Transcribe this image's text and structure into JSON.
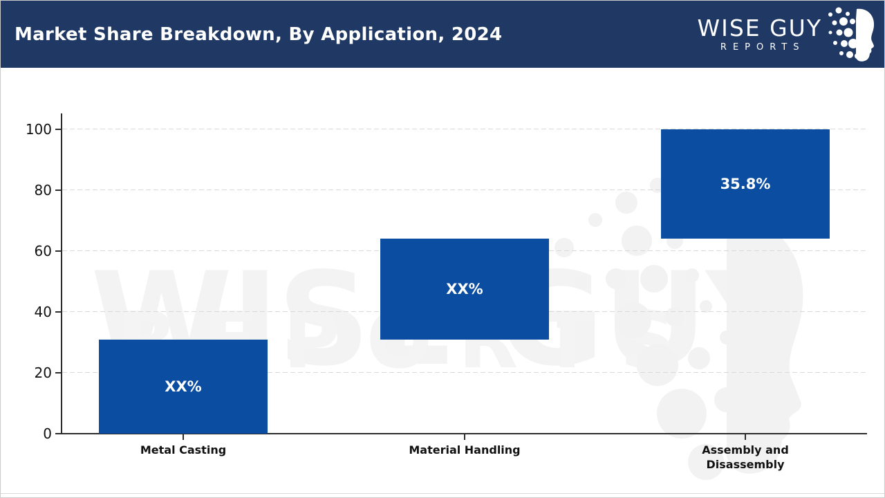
{
  "header": {
    "title": "Market Share Breakdown, By Application, 2024",
    "logo": {
      "line1": "WISE GUY",
      "line2": "REPORTS"
    }
  },
  "watermark": {
    "line1": "WISE GUY",
    "line2": "REPORTS"
  },
  "chart_data": {
    "type": "bar",
    "subtype": "floating-waterfall",
    "title": "Market Share Breakdown, By Application, 2024",
    "categories": [
      "Metal Casting",
      "Material Handling",
      "Assembly and Disassembly"
    ],
    "segments": [
      {
        "category": "Metal Casting",
        "start": 0,
        "end": 31.0,
        "value": 31.0,
        "value_label": "XX%"
      },
      {
        "category": "Material Handling",
        "start": 31.0,
        "end": 64.2,
        "value": 33.2,
        "value_label": "XX%"
      },
      {
        "category": "Assembly and Disassembly",
        "start": 64.2,
        "end": 100.0,
        "value": 35.8,
        "value_label": "35.8%"
      }
    ],
    "yticks": [
      0,
      20,
      40,
      60,
      80,
      100
    ],
    "ylim": [
      0,
      105
    ],
    "xlabel": "",
    "ylabel": "",
    "grid": "horizontal-dashed",
    "legend": "none",
    "bar_color": "#0b4da1",
    "value_label_color": "#ffffff"
  },
  "colors": {
    "header_bg": "#1f3864",
    "bar": "#0b4da1",
    "grid": "#d9d9d9",
    "axis": "#2b2b2b",
    "watermark": "#f3f3f3",
    "page_border": "#cccccc"
  }
}
